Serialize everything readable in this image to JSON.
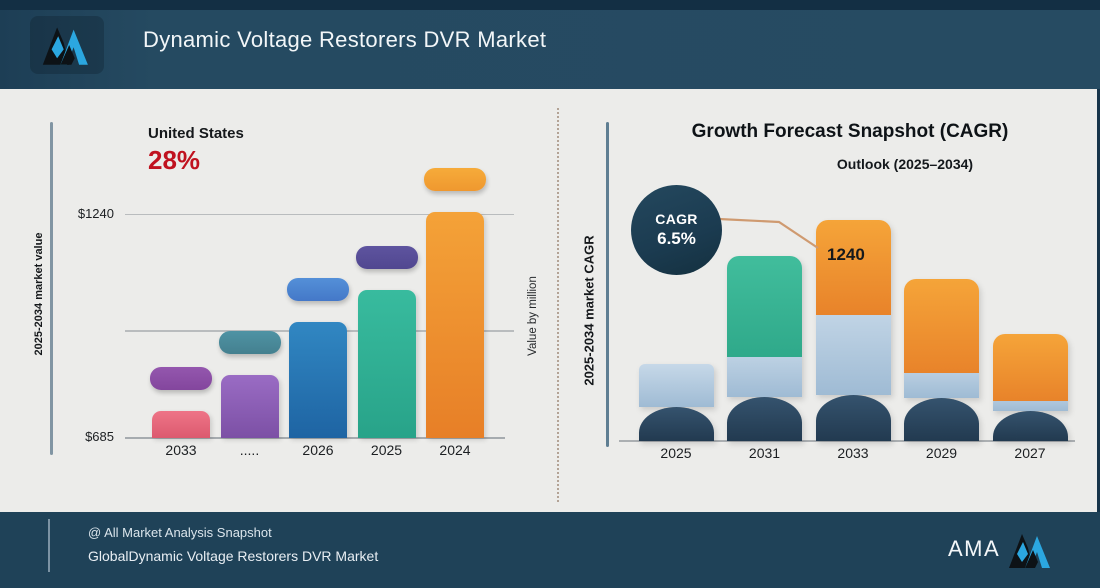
{
  "header": {
    "title": "Dynamic Voltage Restorers DVR Market"
  },
  "left_panel": {
    "heading": "United States",
    "highlight": "28%",
    "y_axis_title": "2025-2034 market value",
    "value_axis_label": "Value by million"
  },
  "right_panel": {
    "title": "Growth Forecast Snapshot (CAGR)",
    "subtitle": "Outlook (2025–2034)",
    "y_axis_title": "2025-2034 market CAGR",
    "badge": {
      "line1": "CAGR",
      "line2": "6.5%"
    },
    "bar_label": "1240"
  },
  "footer": {
    "line1": "@ All Market Analysis Snapshot",
    "line2": "GlobalDynamic Voltage Restorers DVR Market",
    "brand": "AMA"
  },
  "colors": {
    "header_bg": "#254a61",
    "footer_bg": "#1f4258",
    "highlight_red": "#c0121f",
    "badge_navy": "#1b3b50",
    "connector_tan": "#cf9a70",
    "logo_blue": "#2ba7e0",
    "logo_black": "#0d1216"
  },
  "chart_data": [
    {
      "type": "bar",
      "title": "United States",
      "ylabel": "2025-2034 market value",
      "categories": [
        "2033",
        ".....",
        "2026",
        "2025",
        "2024"
      ],
      "values": [
        750,
        840,
        970,
        1050,
        1245
      ],
      "yticks": [
        {
          "label": "$1240",
          "value": 1240
        },
        {
          "label": "$685",
          "value": 685
        }
      ],
      "gridline_values": [
        1240,
        950
      ],
      "ylim": [
        685,
        1330
      ],
      "grid": "horizontal",
      "legend": "none",
      "bar_colors": [
        [
          "#ee7487",
          "#dc5a6f"
        ],
        [
          "#9a6cc4",
          "#7c50a5"
        ],
        [
          "#3187c2",
          "#1e64a3"
        ],
        [
          "#38bb9e",
          "#28a389"
        ],
        [
          "#f4a238",
          "#e77f27"
        ]
      ],
      "pill_colors": [
        [
          "#9457ae",
          "#83469d"
        ],
        [
          "#4f93a4",
          "#44808f"
        ],
        [
          "#5490d8",
          "#4478c8"
        ],
        [
          "#5e549f",
          "#514790"
        ],
        [
          "#f6ab3a",
          "#ef982f"
        ]
      ]
    },
    {
      "type": "stacked-bar",
      "title": "Growth Forecast Snapshot (CAGR)",
      "subtitle": "Outlook (2025–2034)",
      "ylabel": "2025-2034 market CAGR",
      "categories": [
        "2025",
        "2031",
        "2033",
        "2029",
        "2027"
      ],
      "series": [
        {
          "name": "base",
          "color_key": "navy",
          "values": [
            191,
            247,
            258,
            241,
            168
          ]
        },
        {
          "name": "middle",
          "color_key": "lightblue",
          "values": [
            241,
            224,
            449,
            140,
            56
          ]
        },
        {
          "name": "top",
          "color_keys": [
            "none",
            "teal",
            "orange",
            "orange",
            "orange"
          ],
          "values": [
            0,
            567,
            533,
            527,
            376
          ]
        }
      ],
      "totals": [
        432,
        1038,
        1240,
        908,
        600
      ],
      "annotation": {
        "category": "2033",
        "label": "1240"
      },
      "legend": "none",
      "segment_palette": {
        "navy": [
          "#35536e",
          "#223a50"
        ],
        "lightblue": [
          "#c6d8e8",
          "#9fbbd4"
        ],
        "teal": [
          "#41bd9c",
          "#2fa98a"
        ],
        "orange": [
          "#f5a439",
          "#e8832a"
        ]
      }
    }
  ]
}
